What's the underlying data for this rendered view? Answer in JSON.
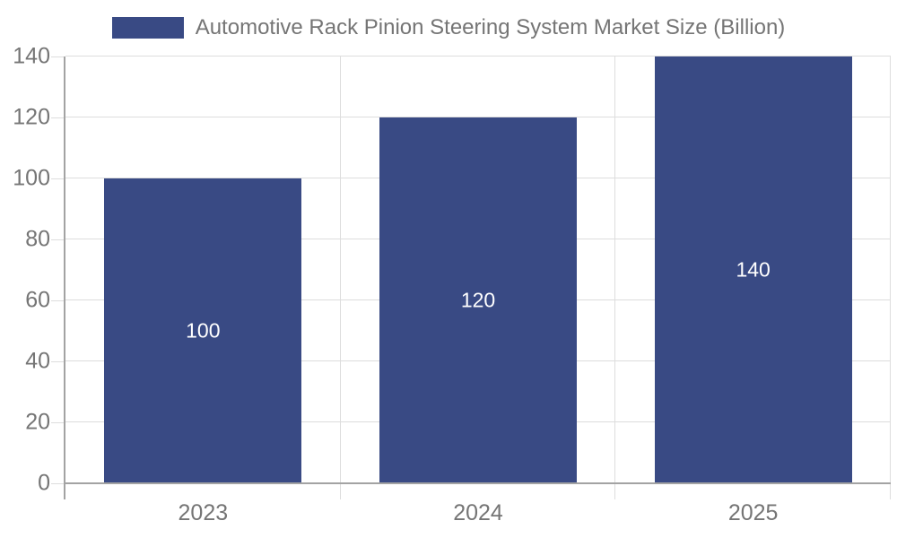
{
  "legend": {
    "label": "Automotive Rack Pinion Steering System Market Size (Billion)"
  },
  "chart_data": {
    "type": "bar",
    "title": "Automotive Rack Pinion Steering System Market Size (Billion)",
    "categories": [
      "2023",
      "2024",
      "2025"
    ],
    "values": [
      100,
      120,
      140
    ],
    "data_labels": [
      "100",
      "120",
      "140"
    ],
    "xlabel": "",
    "ylabel": "",
    "ylim": [
      0,
      140
    ],
    "ytick_step": 20,
    "yticks": [
      "0",
      "20",
      "40",
      "60",
      "80",
      "100",
      "120",
      "140"
    ],
    "grid": true,
    "legend_position": "top-center",
    "data_label_position": "inside-center"
  },
  "colors": {
    "bar": "#394A84",
    "grid": "#dddddd",
    "axis": "#a3a3a3",
    "tick_label": "#757575",
    "legend_text": "#757575",
    "data_label": "#ffffff",
    "background": "#ffffff"
  }
}
